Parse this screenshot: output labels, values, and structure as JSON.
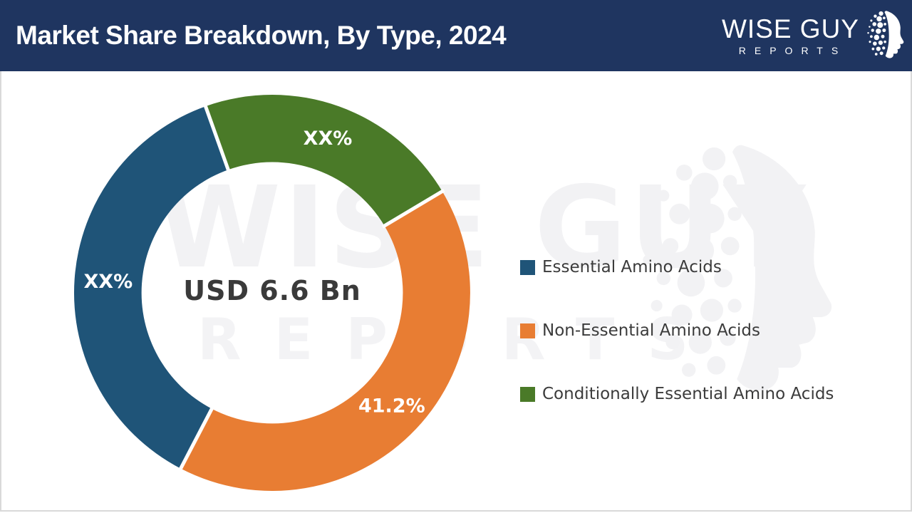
{
  "header": {
    "title": "Market Share Breakdown, By Type, 2024",
    "bg_color": "#1f3560",
    "logo": {
      "line1": "WISE GUY",
      "line2": "REPORTS"
    }
  },
  "watermark": {
    "line1": "WISE GUY",
    "line2": "REPORTS"
  },
  "chart_data": {
    "type": "pie",
    "subtype": "donut",
    "title": "Market Share Breakdown, By Type, 2024",
    "center_label": "USD 6.6 Bn",
    "inner_radius_ratio": 0.66,
    "start_angle_deg_clockwise_from_top": 207.5,
    "segments": [
      {
        "id": "essential",
        "name": "Essential Amino Acids",
        "value_pct_est": 36.9,
        "label": "XX%",
        "color": "#1f5478"
      },
      {
        "id": "conditionally-essential",
        "name": "Conditionally Essential Amino Acids",
        "value_pct_est": 21.9,
        "label": "XX%",
        "color": "#4a7a28"
      },
      {
        "id": "non-essential",
        "name": "Non-Essential Amino Acids",
        "value_pct_est": 41.2,
        "label": "41.2%",
        "color": "#e87d33"
      }
    ],
    "legend_position": "right",
    "legend": [
      {
        "label": "Essential Amino Acids",
        "color": "#1f5478"
      },
      {
        "label": "Non-Essential Amino Acids",
        "color": "#e87d33"
      },
      {
        "label": "Conditionally Essential Amino Acids",
        "color": "#4a7a28"
      }
    ]
  }
}
